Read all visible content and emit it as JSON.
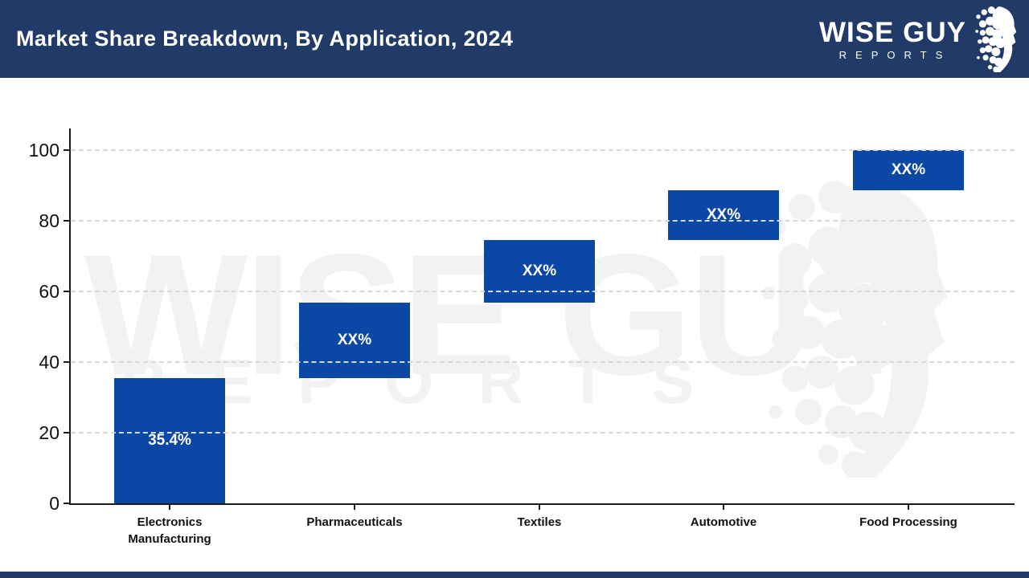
{
  "header": {
    "title": "Market Share Breakdown, By Application, 2024",
    "logo": {
      "line1": "WISE GUY",
      "line2": "REPORTS"
    }
  },
  "watermark": {
    "line1": "WISE GUY",
    "line2": "REPORTS"
  },
  "chart_data": {
    "type": "bar",
    "subtype": "waterfall",
    "title": "Market Share Breakdown, By Application, 2024",
    "categories": [
      "Electronics Manufacturing",
      "Pharmaceuticals",
      "Textiles",
      "Automotive",
      "Food Processing"
    ],
    "segments": [
      {
        "category": "Electronics Manufacturing",
        "start": 0,
        "end": 35.4,
        "label": "35.4%"
      },
      {
        "category": "Pharmaceuticals",
        "start": 35.4,
        "end": 56.8,
        "label": "XX%"
      },
      {
        "category": "Textiles",
        "start": 56.8,
        "end": 74.5,
        "label": "XX%"
      },
      {
        "category": "Automotive",
        "start": 74.5,
        "end": 88.6,
        "label": "XX%"
      },
      {
        "category": "Food Processing",
        "start": 88.6,
        "end": 100,
        "label": "XX%"
      }
    ],
    "y_ticks": [
      0,
      20,
      40,
      60,
      80,
      100
    ],
    "ylim": [
      0,
      105
    ],
    "xlabel": "",
    "ylabel": "",
    "grid": "horizontal-dashed",
    "legend": false,
    "colors": {
      "bar": "#0b47a4",
      "grid": "#d8d8d8",
      "axis": "#1a1a1a",
      "header": "#213a67",
      "bar_label": "#ffffff"
    }
  }
}
